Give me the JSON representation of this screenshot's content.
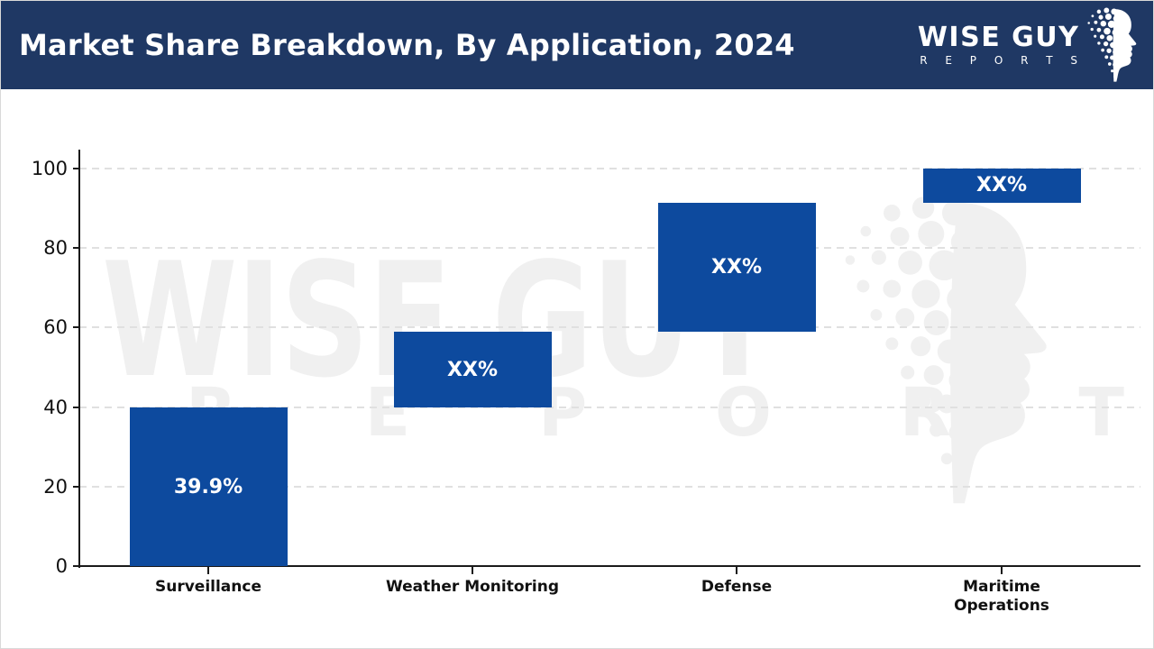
{
  "header": {
    "title": "Market Share Breakdown, By Application, 2024",
    "logo": {
      "line1": "WISE GUY",
      "line2": "R E P O R T S"
    }
  },
  "watermark": {
    "line1": "WISE GUY",
    "line2": "R E P O R T S"
  },
  "colors": {
    "header_bg": "#1f3864",
    "bar": "#0d4a9e",
    "bar_label": "#ffffff",
    "grid": "#e0e0e0",
    "axis": "#1a1a1a",
    "watermark": "#f0f0f0",
    "border": "#d9d9d9"
  },
  "chart_data": {
    "type": "bar",
    "subtype": "waterfall-floating-bars",
    "title": "Market Share Breakdown, By Application, 2024",
    "categories": [
      "Surveillance",
      "Weather Monitoring",
      "Defense",
      "Maritime\nOperations"
    ],
    "bars": [
      {
        "category": "Surveillance",
        "start": 0,
        "end": 39.9,
        "label": "39.9%"
      },
      {
        "category": "Weather Monitoring",
        "start": 39.9,
        "end": 58.9,
        "label": "XX%"
      },
      {
        "category": "Defense",
        "start": 58.9,
        "end": 91.4,
        "label": "XX%"
      },
      {
        "category": "Maritime Operations",
        "start": 91.4,
        "end": 100,
        "label": "XX%"
      }
    ],
    "xlabel": "",
    "ylabel": "",
    "ylim": [
      0,
      100
    ],
    "yticks": [
      0,
      20,
      40,
      60,
      80,
      100
    ],
    "grid": "horizontal-dashed",
    "legend": "none"
  }
}
